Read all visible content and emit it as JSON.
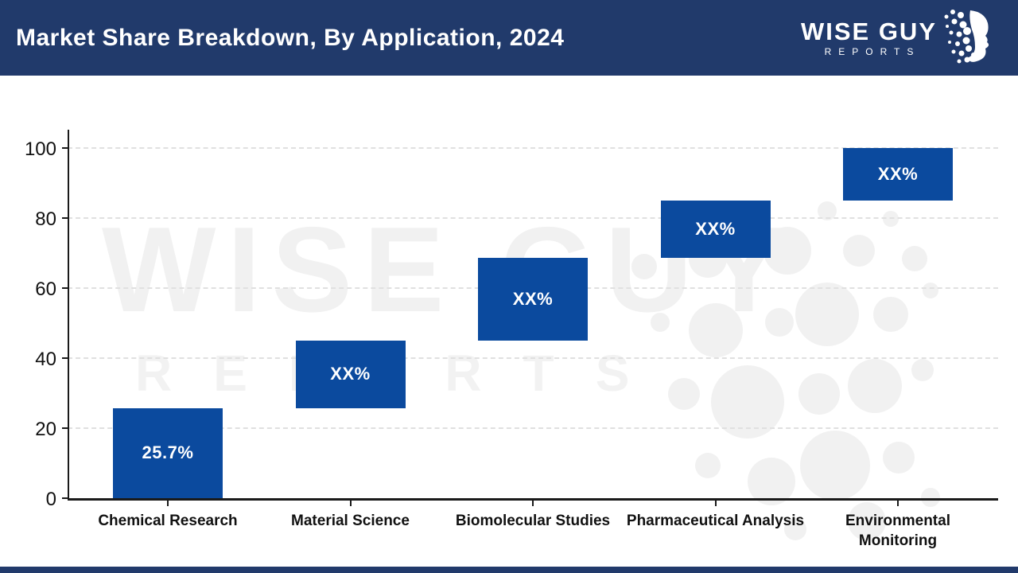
{
  "header": {
    "title": "Market Share Breakdown, By Application, 2024",
    "logo": {
      "line1": "WISE GUY",
      "line2": "REPORTS"
    }
  },
  "watermark": {
    "line1": "WISE GUY",
    "line2": "REPORTS"
  },
  "colors": {
    "header_bg": "#213a6b",
    "bar_fill": "#0b4a9e",
    "bar_label_text": "#ffffff",
    "grid": "#e0e0e0",
    "axis": "#1a1a1a",
    "title_text": "#ffffff",
    "watermark": "#f1f1f1"
  },
  "chart_data": {
    "type": "bar",
    "subtype": "waterfall-floating-bars",
    "title": "Market Share Breakdown, By Application, 2024",
    "xlabel": "",
    "ylabel": "",
    "ylim": [
      0,
      100
    ],
    "yticks": [
      0,
      20,
      40,
      60,
      80,
      100
    ],
    "grid": "horizontal-dashed",
    "legend": "none",
    "categories": [
      "Chemical Research",
      "Material Science",
      "Biomolecular Studies",
      "Pharmaceutical Analysis",
      "Environmental Monitoring"
    ],
    "bars": [
      {
        "category": "Chemical Research",
        "start": 0,
        "end": 25.7,
        "label": "25.7%"
      },
      {
        "category": "Material Science",
        "start": 25.7,
        "end": 45.0,
        "label": "XX%"
      },
      {
        "category": "Biomolecular Studies",
        "start": 45.0,
        "end": 68.6,
        "label": "XX%"
      },
      {
        "category": "Pharmaceutical Analysis",
        "start": 68.6,
        "end": 85.0,
        "label": "XX%"
      },
      {
        "category": "Environmental Monitoring",
        "start": 85.0,
        "end": 100,
        "label": "XX%"
      }
    ]
  }
}
